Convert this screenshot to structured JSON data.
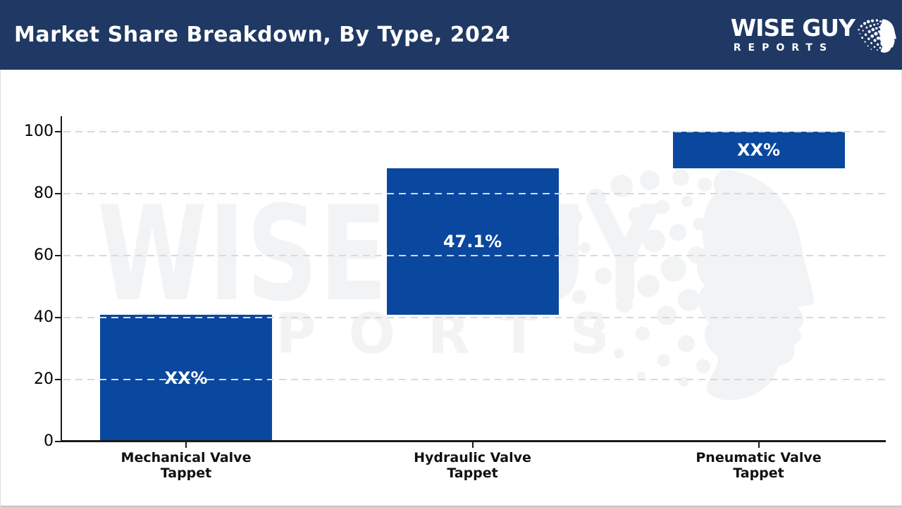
{
  "header": {
    "title": "Market Share Breakdown, By Type, 2024",
    "bg_color": "#1f3864",
    "logo": {
      "line1": "WISE GUY",
      "line2": "REPORTS"
    }
  },
  "watermark": {
    "line1": "WISE GUY",
    "line2": "REPORTS"
  },
  "chart_data": {
    "type": "bar",
    "subtype": "waterfall",
    "title": "Market Share Breakdown, By Type, 2024",
    "categories": [
      [
        "Mechanical Valve",
        "Tappet"
      ],
      [
        "Hydraulic Valve",
        "Tappet"
      ],
      [
        "Pneumatic Valve",
        "Tappet"
      ]
    ],
    "bars": [
      {
        "category": "Mechanical Valve Tappet",
        "label": "XX%",
        "start": 0,
        "end": 41
      },
      {
        "category": "Hydraulic Valve Tappet",
        "label": "47.1%",
        "start": 41,
        "end": 88.1
      },
      {
        "category": "Pneumatic Valve Tappet",
        "label": "XX%",
        "start": 88.1,
        "end": 100
      }
    ],
    "yticks": [
      0,
      20,
      40,
      60,
      80,
      100
    ],
    "ylim": [
      0,
      100
    ],
    "xlabel": "",
    "ylabel": "",
    "legend": "none",
    "grid": "horizontal-dashed",
    "bar_color": "#0a479e",
    "label_color": "#ffffff",
    "grid_color": "#d9d9d9",
    "axis_color": "#1a1a1a"
  }
}
